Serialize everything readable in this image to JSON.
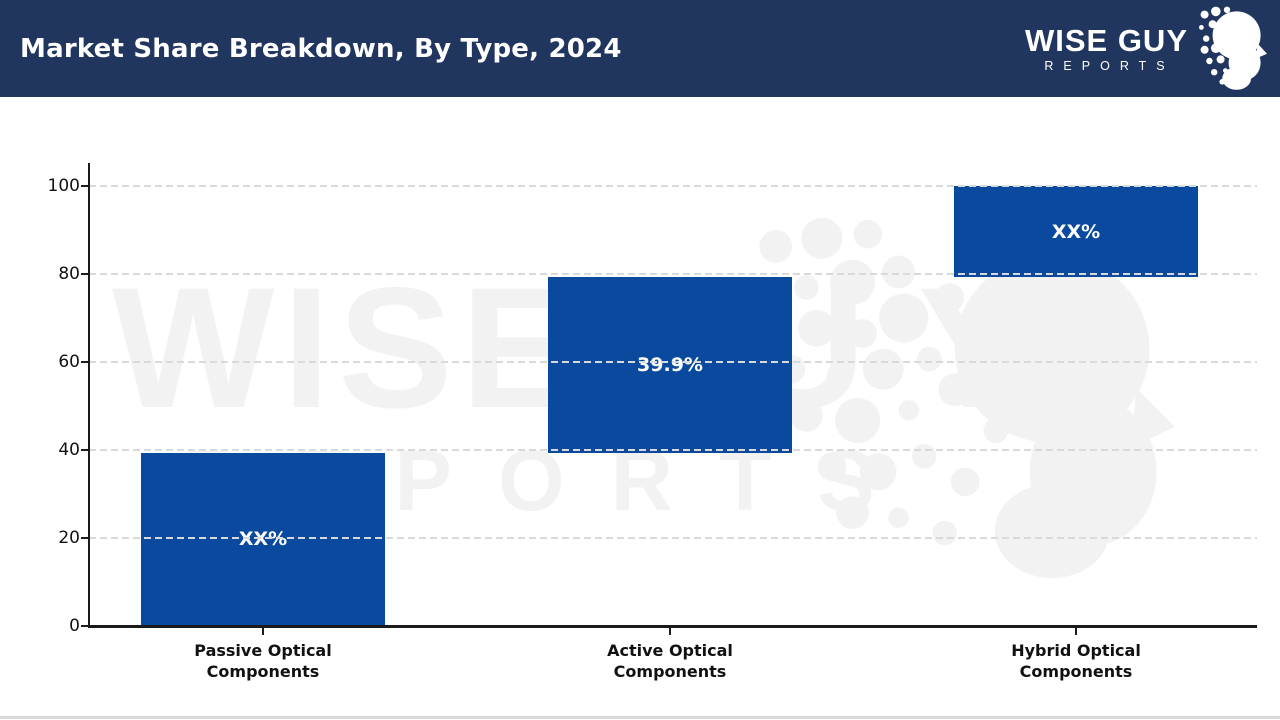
{
  "header": {
    "title": "Market Share Breakdown, By Type, 2024",
    "bg_color": "#21365f",
    "logo": {
      "line1": "WISE GUY",
      "line2": "REPORTS"
    }
  },
  "watermark": {
    "word1": "WISE",
    "word2": "GUY",
    "word3": "REPORTS"
  },
  "chart_data": {
    "type": "bar",
    "subtype": "waterfall",
    "title": "Market Share Breakdown, By Type, 2024",
    "xlabel": "",
    "ylabel": "",
    "categories": [
      "Passive Optical Components",
      "Active Optical Components",
      "Hybrid Optical Components"
    ],
    "segments": [
      {
        "category": "Passive Optical Components",
        "start": 0,
        "end": 39.4,
        "value_label": "XX%"
      },
      {
        "category": "Active Optical Components",
        "start": 39.4,
        "end": 79.3,
        "value_label": "39.9%"
      },
      {
        "category": "Hybrid Optical Components",
        "start": 79.3,
        "end": 100,
        "value_label": "XX%"
      }
    ],
    "yticks": [
      0,
      20,
      40,
      60,
      80,
      100
    ],
    "ylim": [
      0,
      105
    ],
    "grid": true,
    "grid_style": "dashed",
    "legend": "none",
    "bar_color": "#0a4a9e",
    "grid_color": "#d9d9d9",
    "axis_color": "#1a1a1a",
    "label_color": "#111111",
    "value_label_color": "#ffffff"
  }
}
